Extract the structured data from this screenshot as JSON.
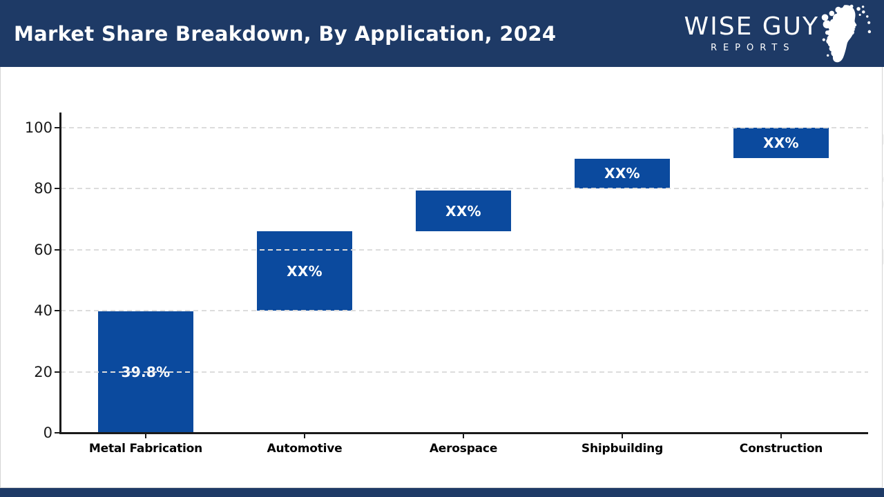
{
  "header": {
    "title": "Market Share Breakdown, By Application, 2024",
    "logo": {
      "line1": "WISE GUY",
      "line2": "REPORTS"
    }
  },
  "watermark": {
    "line1": "WISE GUY",
    "line2": "REPORTS"
  },
  "chart_data": {
    "type": "bar",
    "subtype": "waterfall",
    "title": "Market Share Breakdown, By Application, 2024",
    "categories": [
      "Metal Fabrication",
      "Automotive",
      "Aerospace",
      "Shipbuilding",
      "Construction"
    ],
    "segments": [
      {
        "category": "Metal Fabrication",
        "start": 0,
        "end": 39.8,
        "label": "39.8%"
      },
      {
        "category": "Automotive",
        "start": 40,
        "end": 66,
        "label": "XX%"
      },
      {
        "category": "Aerospace",
        "start": 66,
        "end": 79.3,
        "label": "XX%"
      },
      {
        "category": "Shipbuilding",
        "start": 80,
        "end": 89.8,
        "label": "XX%"
      },
      {
        "category": "Construction",
        "start": 90,
        "end": 99.9,
        "label": "XX%"
      }
    ],
    "xlabel": "",
    "ylabel": "",
    "ylim": [
      0,
      105
    ],
    "yticks": [
      0,
      20,
      40,
      60,
      80,
      100
    ],
    "grid": "horizontal-dashed",
    "legend": "none",
    "colors": {
      "bar": "#0b4a9e",
      "bar_label": "#ffffff",
      "header_bg": "#1e3a66",
      "footer_bg": "#1e3a66",
      "grid": "#dcdcdc",
      "axis": "#1a1a1a",
      "watermark": "#f2f2f2"
    }
  }
}
